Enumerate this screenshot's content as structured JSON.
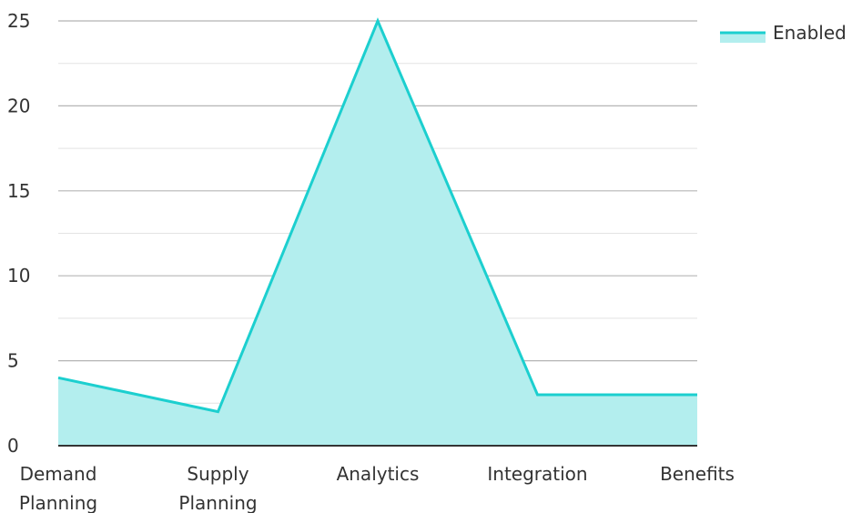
{
  "chart_data": {
    "type": "area",
    "categories": [
      [
        "Demand",
        "Planning"
      ],
      [
        "Supply",
        "Planning"
      ],
      [
        "Analytics"
      ],
      [
        "Integration"
      ],
      [
        "Benefits"
      ]
    ],
    "series": [
      {
        "name": "Enabled",
        "values": [
          4,
          2,
          25,
          3,
          3
        ],
        "line_color": "#1ccfcf",
        "fill_color": "#b3eeee"
      }
    ],
    "ylim": [
      0,
      25
    ],
    "y_ticks": [
      0,
      5,
      10,
      15,
      20,
      25
    ],
    "grid": true,
    "legend_position": "top-right",
    "colors": {
      "grid_major": "#b5b5b5",
      "grid_minor": "#e3e3e3",
      "axis": "#333333",
      "text": "#333333"
    }
  }
}
